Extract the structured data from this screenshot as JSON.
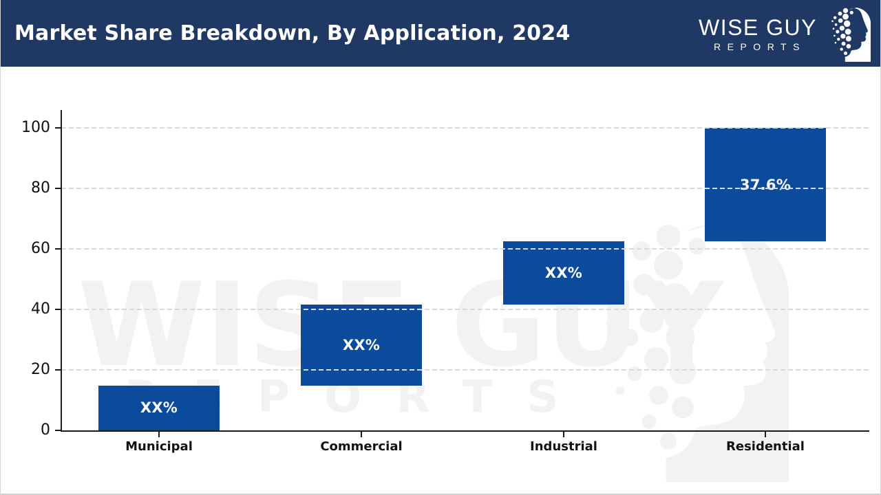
{
  "header": {
    "title": "Market Share Breakdown, By Application, 2024",
    "bg_color": "#1f3864",
    "logo": {
      "line1": "WISE GUY",
      "line2": "REPORTS"
    }
  },
  "watermark": {
    "line1": "WISE GUY",
    "line2": "REPORTS"
  },
  "chart_data": {
    "type": "bar",
    "subtype": "waterfall",
    "title": "Market Share Breakdown, By Application, 2024",
    "categories": [
      "Municipal",
      "Commercial",
      "Industrial",
      "Residential"
    ],
    "series": [
      {
        "name": "Market share (%)",
        "segments": [
          {
            "category": "Municipal",
            "start": 0,
            "end": 14.8,
            "label": "XX%"
          },
          {
            "category": "Commercial",
            "start": 14.8,
            "end": 41.6,
            "label": "XX%"
          },
          {
            "category": "Industrial",
            "start": 41.6,
            "end": 62.4,
            "label": "XX%"
          },
          {
            "category": "Residential",
            "start": 62.4,
            "end": 100,
            "label": "37.6%"
          }
        ]
      }
    ],
    "ylim": [
      0,
      100
    ],
    "yticks": [
      0,
      20,
      40,
      60,
      80,
      100
    ],
    "xlabel": "",
    "ylabel": "",
    "legend": "none",
    "grid": "horizontal-dashed-above-bars",
    "bar_color": "#0c4a9c",
    "grid_color": "#d9d9d9",
    "value_label_color": "#ffffff"
  }
}
